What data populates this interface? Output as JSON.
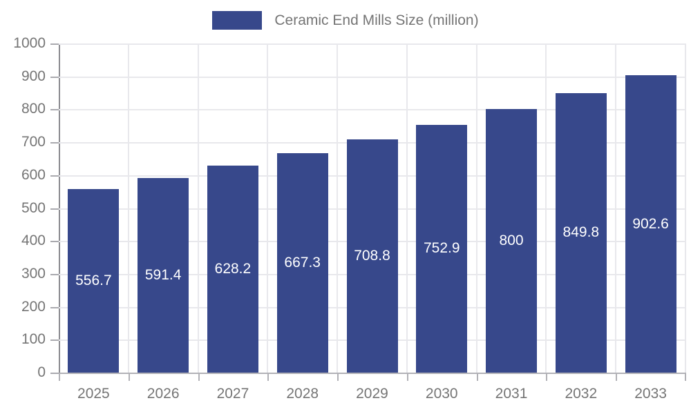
{
  "legend": {
    "label": "Ceramic End Mills Size (million)"
  },
  "chart_data": {
    "type": "bar",
    "title": "Ceramic End Mills Size (million)",
    "categories": [
      "2025",
      "2026",
      "2027",
      "2028",
      "2029",
      "2030",
      "2031",
      "2032",
      "2033"
    ],
    "values": [
      556.7,
      591.4,
      628.2,
      667.3,
      708.8,
      752.9,
      800,
      849.8,
      902.6
    ],
    "value_labels": [
      "556.7",
      "591.4",
      "628.2",
      "667.3",
      "708.8",
      "752.9",
      "800",
      "849.8",
      "902.6"
    ],
    "xlabel": "",
    "ylabel": "",
    "ylim": [
      0,
      1000
    ],
    "yticks": [
      0,
      100,
      200,
      300,
      400,
      500,
      600,
      700,
      800,
      900,
      1000
    ],
    "grid": true,
    "legend_position": "top-center",
    "bar_color": "#37488b",
    "bar_label_color": "#ffffff",
    "axis_text_color": "#757575"
  }
}
